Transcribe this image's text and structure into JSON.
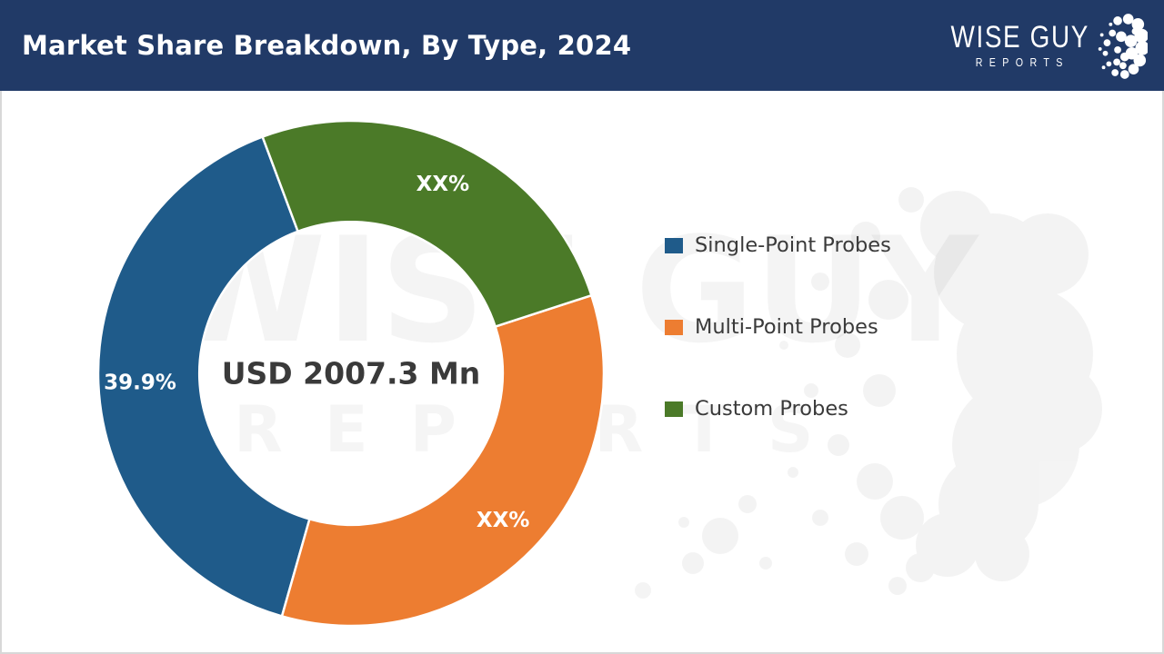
{
  "header": {
    "title": "Market Share Breakdown, By Type, 2024",
    "logo": {
      "line1": "WISE GUY",
      "line2": "REPORTS"
    }
  },
  "watermark": {
    "line1": "WISE GUY",
    "line2": "REPORTS"
  },
  "colors": {
    "header_bg": "#213a67",
    "text_dark": "#3a3a3a",
    "slice_blue": "#1f5b8a",
    "slice_orange": "#ed7d31",
    "slice_green": "#4b7a28"
  },
  "chart_data": {
    "type": "pie",
    "subtype": "donut",
    "title": "Market Share Breakdown, By Type, 2024",
    "center_label": "USD 2007.3 Mn",
    "donut_hole_ratio": 0.6,
    "start_angle_deg": 110.5,
    "direction": "ccw",
    "legend_position": "right",
    "slices": [
      {
        "name": "Single-Point Probes",
        "display_label": "39.9%",
        "value_pct": 39.9,
        "color": "#1f5b8a"
      },
      {
        "name": "Multi-Point Probes",
        "display_label": "XX%",
        "value_pct": 34.4,
        "color": "#ed7d31"
      },
      {
        "name": "Custom Probes",
        "display_label": "XX%",
        "value_pct": 25.7,
        "color": "#4b7a28"
      }
    ]
  }
}
